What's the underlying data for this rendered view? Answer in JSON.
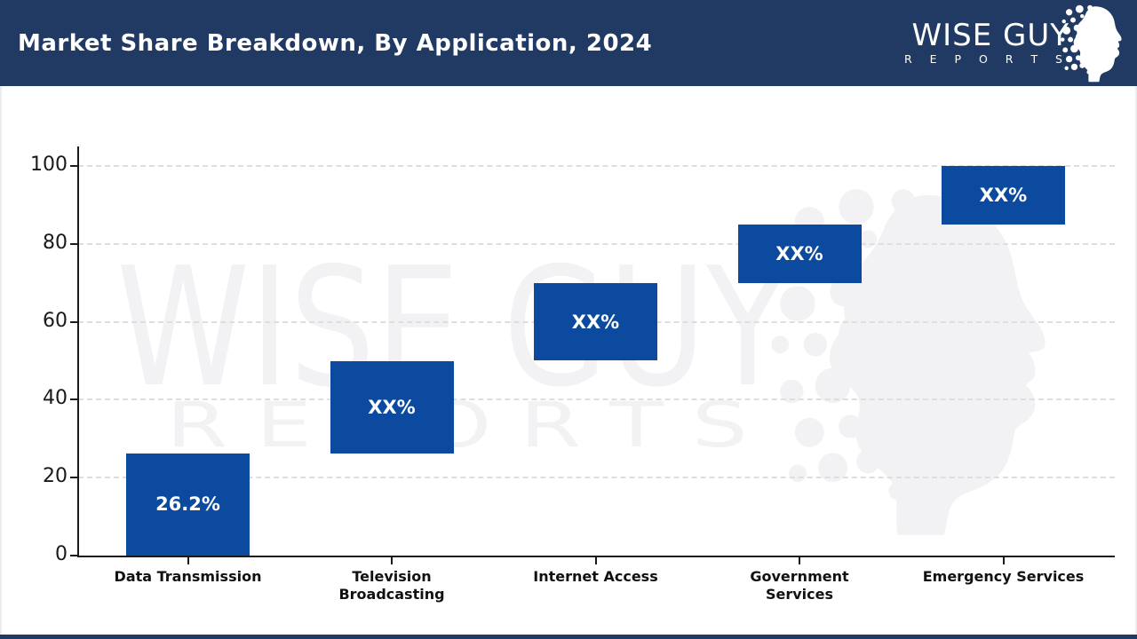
{
  "header": {
    "title": "Market Share Breakdown, By Application, 2024",
    "logo": {
      "brand": "WISE GUY",
      "sub": "R E P O R T S"
    }
  },
  "watermark": {
    "brand": "WISE GUY",
    "sub": "R E P O R T S"
  },
  "colors": {
    "header_bg": "#213a64",
    "bar": "#0b4a9f",
    "bar_label": "#ffffff",
    "grid": "#dedede",
    "watermark": "#f2f2f4",
    "title": "#ffffff"
  },
  "chart_data": {
    "type": "bar",
    "variant": "floating-waterfall",
    "title": "Market Share Breakdown, By Application, 2024",
    "xlabel": "",
    "ylabel": "",
    "ylim": [
      0,
      105
    ],
    "yticks": [
      0,
      20,
      40,
      60,
      80,
      100
    ],
    "grid": "horizontal-dashed",
    "legend": "none",
    "categories": [
      "Data Transmission",
      "Television Broadcasting",
      "Internet Access",
      "Government Services",
      "Emergency Services"
    ],
    "bars": [
      {
        "category_lines": [
          "Data Transmission"
        ],
        "start": 0,
        "end": 26.2,
        "label": "26.2%"
      },
      {
        "category_lines": [
          "Television",
          "Broadcasting"
        ],
        "start": 26.2,
        "end": 50,
        "label": "XX%"
      },
      {
        "category_lines": [
          "Internet Access"
        ],
        "start": 50,
        "end": 70,
        "label": "XX%"
      },
      {
        "category_lines": [
          "Government",
          "Services"
        ],
        "start": 70,
        "end": 85,
        "label": "XX%"
      },
      {
        "category_lines": [
          "Emergency Services"
        ],
        "start": 85,
        "end": 100,
        "label": "XX%"
      }
    ]
  }
}
